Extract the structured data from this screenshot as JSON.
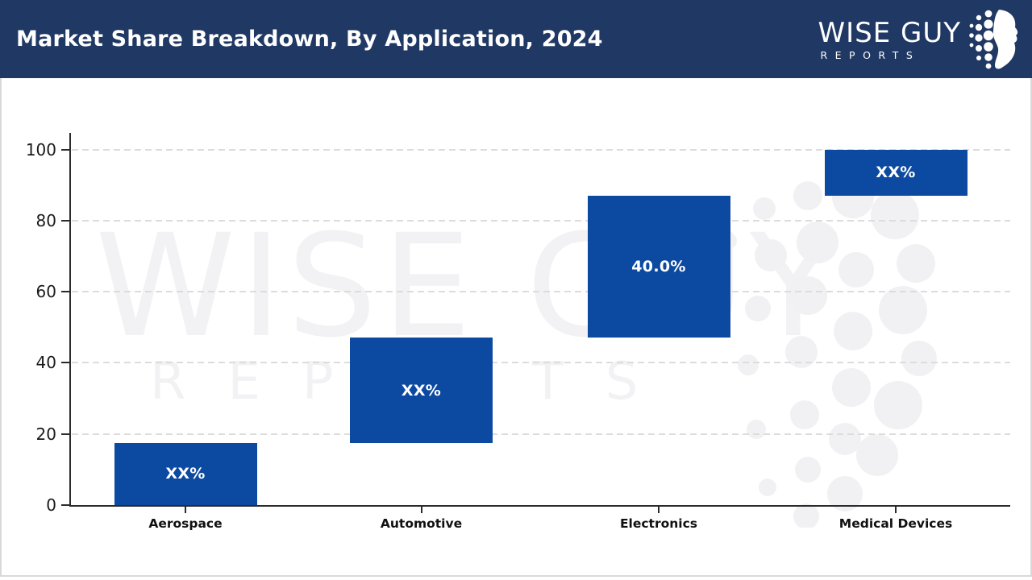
{
  "header": {
    "title": "Market Share Breakdown, By Application, 2024",
    "bg_color": "#203864",
    "logo": {
      "line1": "WISE GUY",
      "line2": "REPORTS"
    }
  },
  "watermark": {
    "line1": "WISE GUY",
    "line2": "REPORTS"
  },
  "chart_data": {
    "type": "bar",
    "subtype": "floating-waterfall",
    "title": "Market Share Breakdown, By Application, 2024",
    "categories": [
      "Aerospace",
      "Automotive",
      "Electronics",
      "Medical Devices"
    ],
    "segments": [
      {
        "category": "Aerospace",
        "start": 0,
        "end": 17.5,
        "label": "XX%"
      },
      {
        "category": "Automotive",
        "start": 17.5,
        "end": 47,
        "label": "XX%"
      },
      {
        "category": "Electronics",
        "start": 47,
        "end": 87,
        "label": "40.0%"
      },
      {
        "category": "Medical Devices",
        "start": 87,
        "end": 100,
        "label": "XX%"
      }
    ],
    "yticks": [
      0,
      20,
      40,
      60,
      80,
      100
    ],
    "ylim": [
      0,
      105
    ],
    "xlabel": "",
    "ylabel": "",
    "grid": "horizontal-dashed",
    "legend": "none",
    "bar_color": "#0c49a0",
    "bar_label_color": "#ffffff",
    "gridline_color": "#dcdcdc",
    "axis_color": "#2b2b2b"
  }
}
